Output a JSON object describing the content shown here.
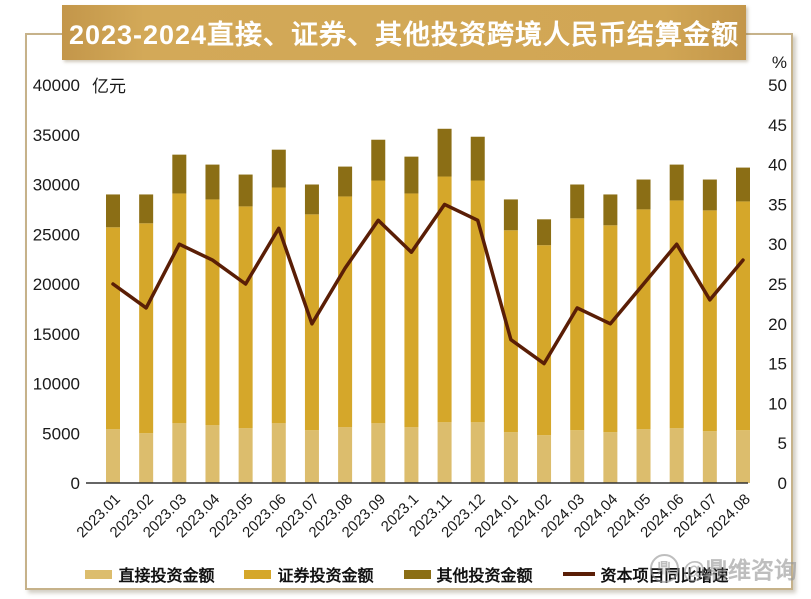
{
  "watermark": {
    "text": "@鼎维咨询",
    "icon": "logo-circle-icon"
  },
  "colors": {
    "banner_bg": "#d1a654",
    "banner_text": "#ffffff",
    "frame_border": "#c6b28a",
    "axis_text": "#1a1a1a",
    "axis_line": "#333333",
    "watermark_gray": "#969696"
  },
  "chart_data": {
    "type": "bar",
    "stacked": true,
    "title": "2023-2024直接、证券、其他投资跨境人民币结算金额",
    "grid": false,
    "legend_position": "bottom",
    "categories": [
      "2023.01",
      "2023.02",
      "2023.03",
      "2023.04",
      "2023.05",
      "2023.06",
      "2023.07",
      "2023.08",
      "2023.09",
      "2023.1",
      "2023.11",
      "2023.12",
      "2024.01",
      "2024.02",
      "2024.03",
      "2024.04",
      "2024.05",
      "2024.06",
      "2024.07",
      "2024.08"
    ],
    "left_axis": {
      "unit": "亿元",
      "min": 0,
      "max": 40000,
      "step": 5000
    },
    "right_axis": {
      "unit": "%",
      "min": 0,
      "max": 50,
      "step": 5
    },
    "series": [
      {
        "name": "直接投资金额",
        "kind": "bar",
        "color": "#dcbd6d",
        "values": [
          5400,
          5000,
          6000,
          5800,
          5500,
          6000,
          5300,
          5600,
          6000,
          5600,
          6100,
          6100,
          5100,
          4800,
          5300,
          5100,
          5400,
          5500,
          5200,
          5300
        ]
      },
      {
        "name": "证券投资金额",
        "kind": "bar",
        "color": "#d5a72a",
        "values": [
          20300,
          21100,
          23100,
          22700,
          22300,
          23700,
          21700,
          23200,
          24400,
          23500,
          24700,
          24300,
          20300,
          19100,
          21300,
          20800,
          22100,
          22900,
          22200,
          23000
        ]
      },
      {
        "name": "其他投资金额",
        "kind": "bar",
        "color": "#8b6e15",
        "values": [
          3300,
          2900,
          3900,
          3500,
          3200,
          3800,
          3000,
          3000,
          4100,
          3700,
          4800,
          4400,
          3100,
          2600,
          3400,
          3100,
          3000,
          3600,
          3100,
          3400
        ]
      },
      {
        "name": "资本项目同比增速",
        "kind": "line",
        "axis": "right",
        "color": "#5a1e06",
        "values": [
          25,
          22,
          30,
          28,
          25,
          32,
          20,
          27,
          33,
          29,
          35,
          33,
          18,
          15,
          22,
          20,
          25,
          30,
          23,
          28
        ]
      }
    ]
  }
}
